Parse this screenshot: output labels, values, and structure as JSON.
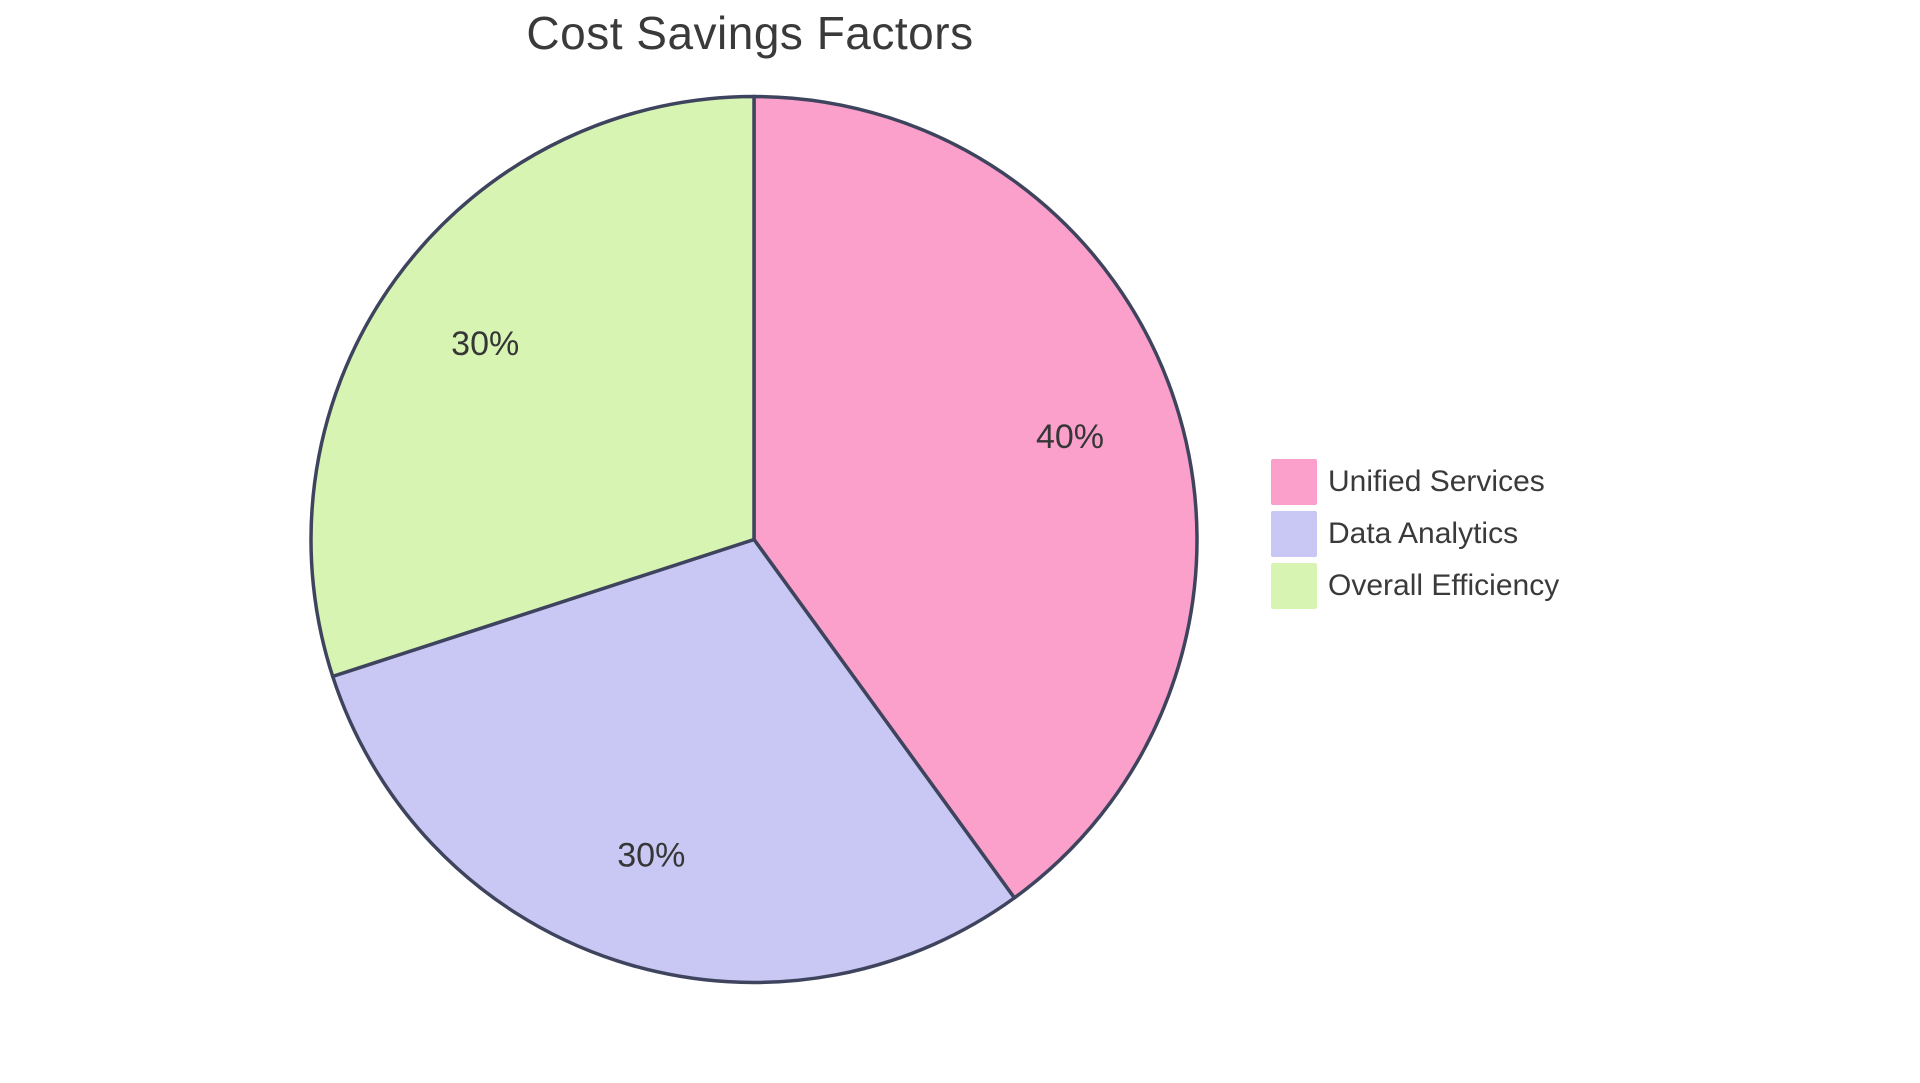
{
  "chart_data": {
    "type": "pie",
    "title": "Cost Savings Factors",
    "categories": [
      "Unified Services",
      "Data Analytics",
      "Overall Efficiency"
    ],
    "values": [
      40,
      30,
      30
    ],
    "value_labels": [
      "40%",
      "30%",
      "30%"
    ],
    "slice_colors": [
      "#FAA0CB",
      "#C9C7F3",
      "#D7F4B3"
    ],
    "outline_color": "#3F445E",
    "label_color": "#363636",
    "title_color": "#3A3A3A",
    "start_angle": "12-oclock",
    "direction": "clockwise",
    "background": "#FFFFFF",
    "legend": {
      "position": "middle-right",
      "entries": [
        "Unified Services",
        "Data Analytics",
        "Overall Efficiency"
      ],
      "text_color": "#3A3A3A"
    }
  }
}
